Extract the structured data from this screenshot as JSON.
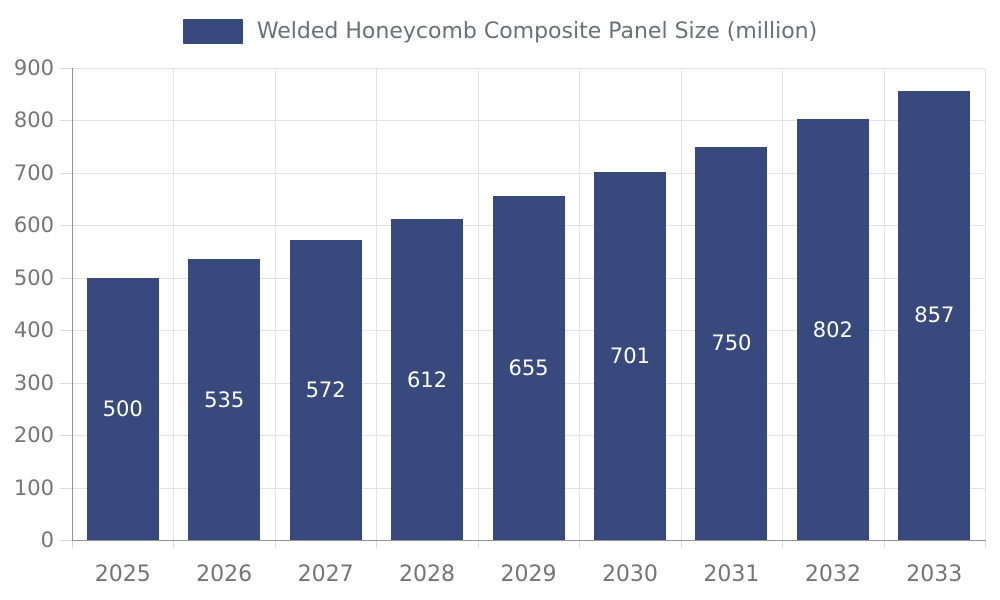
{
  "chart_data": {
    "type": "bar",
    "title": "Welded Honeycomb Composite Panel Size (million)",
    "legend_entries": [
      "Welded Honeycomb Composite Panel Size (million)"
    ],
    "legend_position": "top",
    "categories": [
      "2025",
      "2026",
      "2027",
      "2028",
      "2029",
      "2030",
      "2031",
      "2032",
      "2033"
    ],
    "values": [
      500,
      535,
      572,
      612,
      655,
      701,
      750,
      802,
      857
    ],
    "xlabel": "",
    "ylabel": "",
    "ylim": [
      0,
      900
    ],
    "ytick_interval": 100,
    "ytick_labels": [
      "0",
      "100",
      "200",
      "300",
      "400",
      "500",
      "600",
      "700",
      "800",
      "900"
    ],
    "grid": true,
    "bar_color": "#37497d",
    "value_label_color": "#ffffff",
    "axis_text_color": "#757575"
  }
}
